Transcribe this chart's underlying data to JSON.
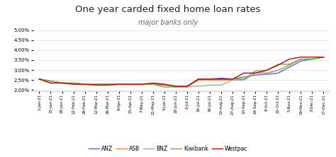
{
  "title": "One year carded fixed home loan rates",
  "subtitle": "major banks only",
  "title_fontsize": 9.5,
  "subtitle_fontsize": 7,
  "ylim": [
    1.95,
    5.25
  ],
  "yticks": [
    2.0,
    2.5,
    3.0,
    3.5,
    4.0,
    4.5,
    5.0
  ],
  "background_color": "#ffffff",
  "grid_color": "#dddddd",
  "legend_entries": [
    "ANZ",
    "ASB",
    "BNZ",
    "Kiwibank",
    "Westpac"
  ],
  "line_colors": {
    "ANZ": "#4472C4",
    "ASB": "#ED7D31",
    "BNZ": "#A5A5A5",
    "Kiwibank": "#70AD47",
    "Westpac": "#C00000"
  },
  "tick_labels": [
    "1-Jan-21",
    "15-Jan-21",
    "29-Jan-21",
    "12-Feb-21",
    "26-Feb-21",
    "12-Mar-21",
    "26-Mar-21",
    "9-Apr-21",
    "23-Apr-21",
    "7-May-21",
    "21-May-21",
    "4-Jun-21",
    "18-Jun-21",
    "2-Jul-21",
    "16-Jul-21",
    "30-Jul-21",
    "13-Aug-21",
    "27-Aug-21",
    "10-Sep-21",
    "24-Sep-21",
    "8-Oct-21",
    "22-Oct-21",
    "5-Nov-21",
    "19-Nov-21",
    "3-Dec-21",
    "17-Dec-21"
  ],
  "series": {
    "ANZ": [
      2.55,
      2.45,
      2.35,
      2.35,
      2.29,
      2.29,
      2.29,
      2.29,
      2.29,
      2.29,
      2.29,
      2.25,
      2.19,
      2.19,
      2.55,
      2.55,
      2.6,
      2.55,
      2.65,
      2.75,
      2.79,
      2.85,
      3.15,
      3.45,
      3.55,
      3.65
    ],
    "ASB": [
      2.55,
      2.45,
      2.35,
      2.35,
      2.29,
      2.29,
      2.29,
      2.29,
      2.29,
      2.29,
      2.29,
      2.25,
      2.19,
      2.19,
      2.5,
      2.5,
      2.5,
      2.5,
      2.5,
      2.85,
      2.85,
      2.99,
      3.25,
      3.55,
      3.55,
      3.65
    ],
    "BNZ": [
      2.55,
      2.35,
      2.35,
      2.29,
      2.29,
      2.25,
      2.25,
      2.29,
      2.29,
      2.29,
      2.35,
      2.29,
      2.19,
      2.19,
      2.19,
      2.25,
      2.25,
      2.5,
      2.5,
      2.85,
      2.85,
      2.99,
      3.25,
      3.55,
      3.55,
      3.65
    ],
    "Kiwibank": [
      2.55,
      2.45,
      2.35,
      2.35,
      2.29,
      2.29,
      2.29,
      2.29,
      2.29,
      2.29,
      2.29,
      2.15,
      2.15,
      2.15,
      2.55,
      2.55,
      2.55,
      2.55,
      2.55,
      2.95,
      2.99,
      3.29,
      3.29,
      3.55,
      3.55,
      3.65
    ],
    "Westpac": [
      2.55,
      2.35,
      2.35,
      2.29,
      2.29,
      2.25,
      2.25,
      2.29,
      2.29,
      2.29,
      2.35,
      2.29,
      2.19,
      2.19,
      2.55,
      2.55,
      2.55,
      2.55,
      2.85,
      2.85,
      2.99,
      3.25,
      3.55,
      3.65,
      3.65,
      3.65
    ]
  }
}
